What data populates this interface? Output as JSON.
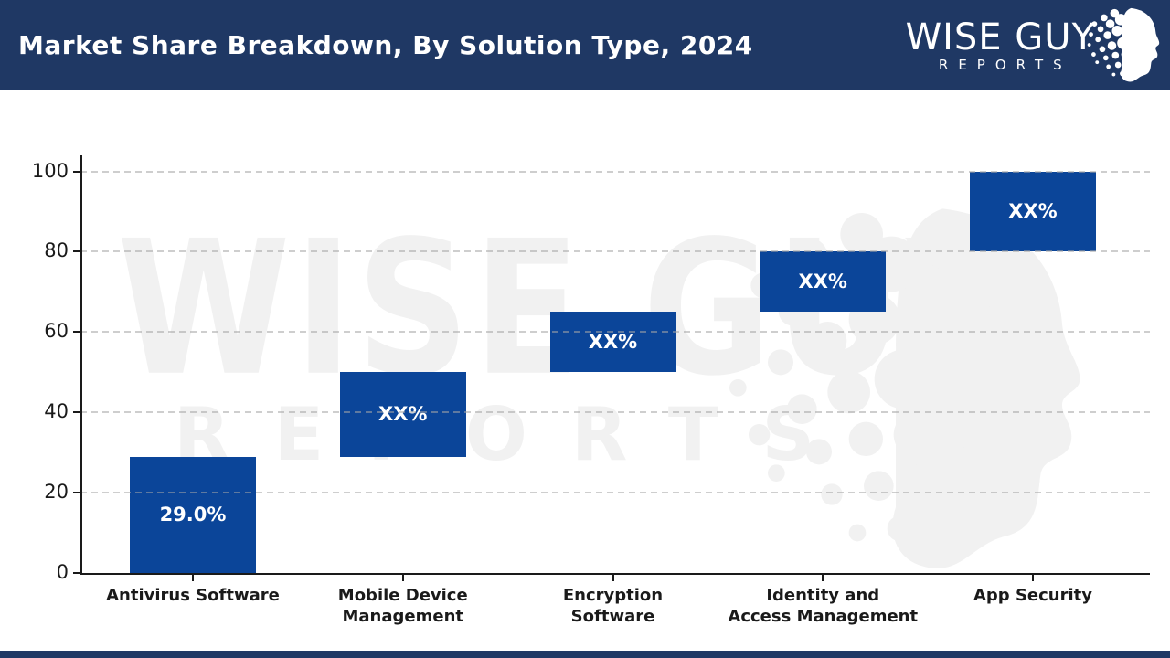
{
  "header": {
    "title": "Market Share Breakdown, By Solution Type, 2024",
    "bg_color": "#1f3864",
    "logo_line1": "WISE GUY",
    "logo_line2": "REPORTS"
  },
  "watermark": {
    "line1": "WISE GUY",
    "line2": "REPORTS"
  },
  "chart_data": {
    "type": "bar",
    "subtype": "waterfall",
    "title": "Market Share Breakdown, By Solution Type, 2024",
    "categories": [
      "Antivirus Software",
      "Mobile Device Management",
      "Encryption Software",
      "Identity and Access Management",
      "App Security"
    ],
    "category_lines": [
      [
        "Antivirus Software"
      ],
      [
        "Mobile Device",
        "Management"
      ],
      [
        "Encryption",
        "Software"
      ],
      [
        "Identity and",
        "Access Management"
      ],
      [
        "App Security"
      ]
    ],
    "bars": [
      {
        "category": "Antivirus Software",
        "start": 0,
        "end": 29,
        "label": "29.0%"
      },
      {
        "category": "Mobile Device Management",
        "start": 29,
        "end": 50,
        "label": "XX%"
      },
      {
        "category": "Encryption Software",
        "start": 50,
        "end": 65,
        "label": "XX%"
      },
      {
        "category": "Identity and Access Management",
        "start": 65,
        "end": 80,
        "label": "XX%"
      },
      {
        "category": "App Security",
        "start": 80,
        "end": 100,
        "label": "XX%"
      }
    ],
    "yticks": [
      0,
      20,
      40,
      60,
      80,
      100
    ],
    "ylim": [
      0,
      104
    ],
    "bar_color": "#0b4599",
    "axis_color": "#1a1a1a",
    "grid": {
      "style": "dashed",
      "axis": "y",
      "color": "#cccccc"
    },
    "legend": null
  }
}
